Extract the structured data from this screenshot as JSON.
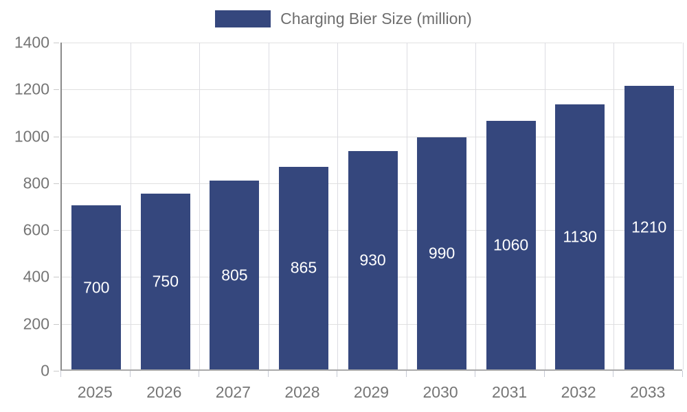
{
  "chart_data": {
    "type": "bar",
    "title": "Charging Bier Size (million)",
    "legend": "Charging Bier Size (million)",
    "categories": [
      "2025",
      "2026",
      "2027",
      "2028",
      "2029",
      "2030",
      "2031",
      "2032",
      "2033"
    ],
    "values": [
      700,
      750,
      805,
      865,
      930,
      990,
      1060,
      1130,
      1210
    ],
    "series": [
      {
        "name": "Charging Bier Size (million)",
        "values": [
          700,
          750,
          805,
          865,
          930,
          990,
          1060,
          1130,
          1210
        ]
      }
    ],
    "xlabel": "",
    "ylabel": "",
    "ylim": [
      0,
      1400
    ],
    "ytick_step": 200,
    "ytick_labels": [
      "0",
      "200",
      "400",
      "600",
      "800",
      "1000",
      "1200",
      "1400"
    ],
    "grid": true,
    "legend_position": "top",
    "bar_labels_inside": true,
    "colors": {
      "bar": "#35477d",
      "bar_label": "#ffffff",
      "axis_text": "#757575",
      "legend_text": "#6e6e6e",
      "grid_h": "#e0e0e0",
      "grid_v": "#dcdce2",
      "axis_line_y": "#8a8a8a",
      "axis_line_x": "#a9a9a9",
      "background": "#ffffff"
    }
  }
}
